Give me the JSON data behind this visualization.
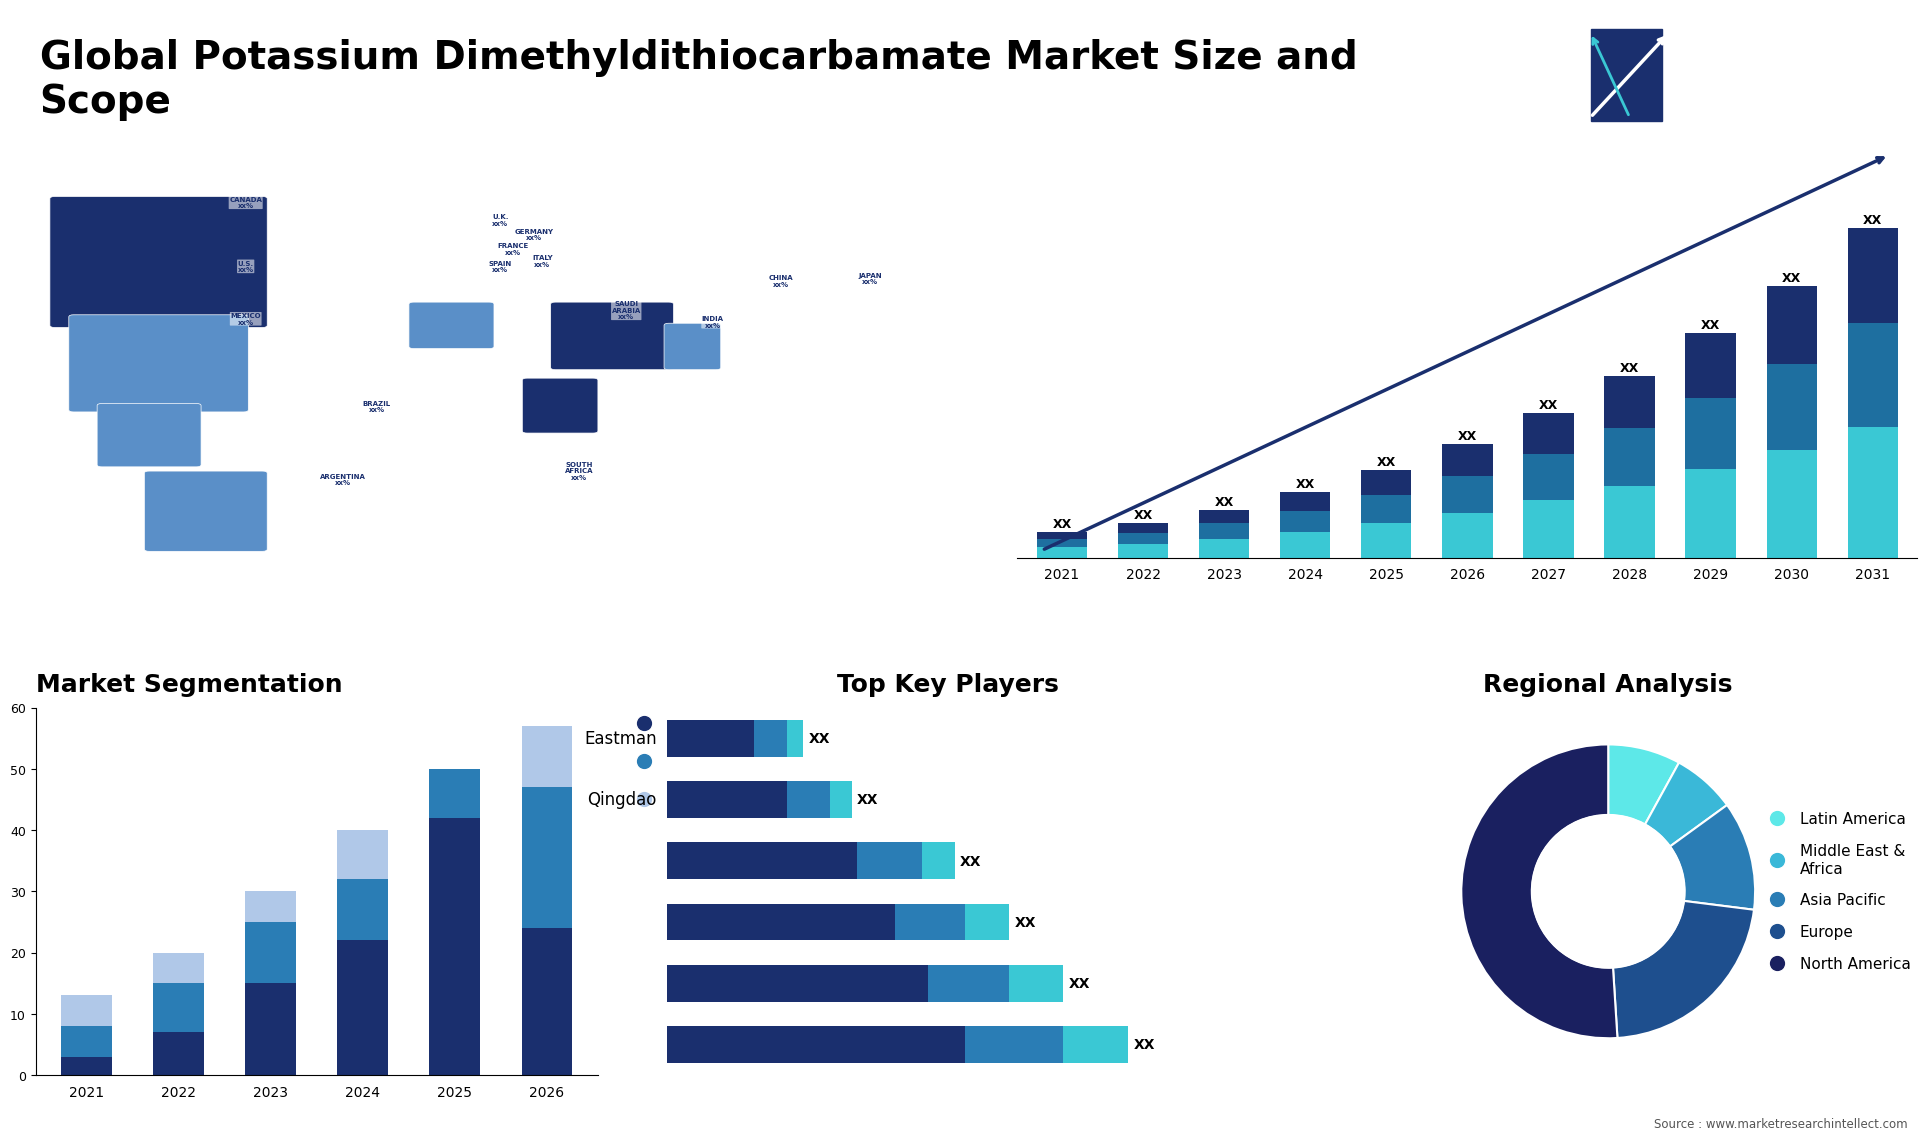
{
  "title": "Global Potassium Dimethyldithiocarbamate Market Size and\nScope",
  "title_fontsize": 28,
  "background_color": "#ffffff",
  "bar_chart_years": [
    2021,
    2022,
    2023,
    2024,
    2025,
    2026,
    2027,
    2028,
    2029,
    2030,
    2031
  ],
  "bar_seg_cyan": [
    1.0,
    1.3,
    1.8,
    2.5,
    3.3,
    4.3,
    5.5,
    6.9,
    8.5,
    10.3,
    12.5
  ],
  "bar_seg_mid": [
    0.8,
    1.1,
    1.5,
    2.0,
    2.7,
    3.5,
    4.4,
    5.5,
    6.8,
    8.2,
    10.0
  ],
  "bar_seg_dark": [
    0.7,
    0.9,
    1.3,
    1.8,
    2.4,
    3.1,
    4.0,
    5.0,
    6.2,
    7.5,
    9.1
  ],
  "bar_color_cyan": "#3ac8d4",
  "bar_color_mid": "#1e6fa0",
  "bar_color_dark": "#1a2f6e",
  "seg_years": [
    "2021",
    "2022",
    "2023",
    "2024",
    "2025",
    "2026"
  ],
  "seg_type": [
    3,
    7,
    15,
    22,
    42,
    24
  ],
  "seg_application": [
    5,
    8,
    10,
    10,
    8,
    23
  ],
  "seg_geography": [
    5,
    5,
    5,
    8,
    0,
    10
  ],
  "seg_color_type": "#1a2f6e",
  "seg_color_app": "#2a7db5",
  "seg_color_geo": "#b0c8e8",
  "seg_title": "Market Segmentation",
  "seg_ylim": [
    0,
    60
  ],
  "seg_yticks": [
    0,
    10,
    20,
    30,
    40,
    50,
    60
  ],
  "players_title": "Top Key Players",
  "players_bar_dark": [
    55,
    48,
    42,
    35,
    22,
    16
  ],
  "players_bar_mid": [
    18,
    15,
    13,
    12,
    8,
    6
  ],
  "players_bar_cyan": [
    12,
    10,
    8,
    6,
    4,
    3
  ],
  "players_color_dark": "#1a2f6e",
  "players_color_mid": "#2a7db5",
  "players_color_cyan": "#3ac8d4",
  "players_labels_left": [
    "",
    "",
    "",
    "",
    "Qingdao",
    "Eastman"
  ],
  "regional_title": "Regional Analysis",
  "regional_slices": [
    8,
    7,
    12,
    22,
    51
  ],
  "regional_colors": [
    "#5de8e8",
    "#3ab8d8",
    "#2a7db5",
    "#1e4f8e",
    "#1a2060"
  ],
  "regional_labels": [
    "Latin America",
    "Middle East &\nAfrica",
    "Asia Pacific",
    "Europe",
    "North America"
  ],
  "source_text": "Source : www.marketresearchintellect.com"
}
